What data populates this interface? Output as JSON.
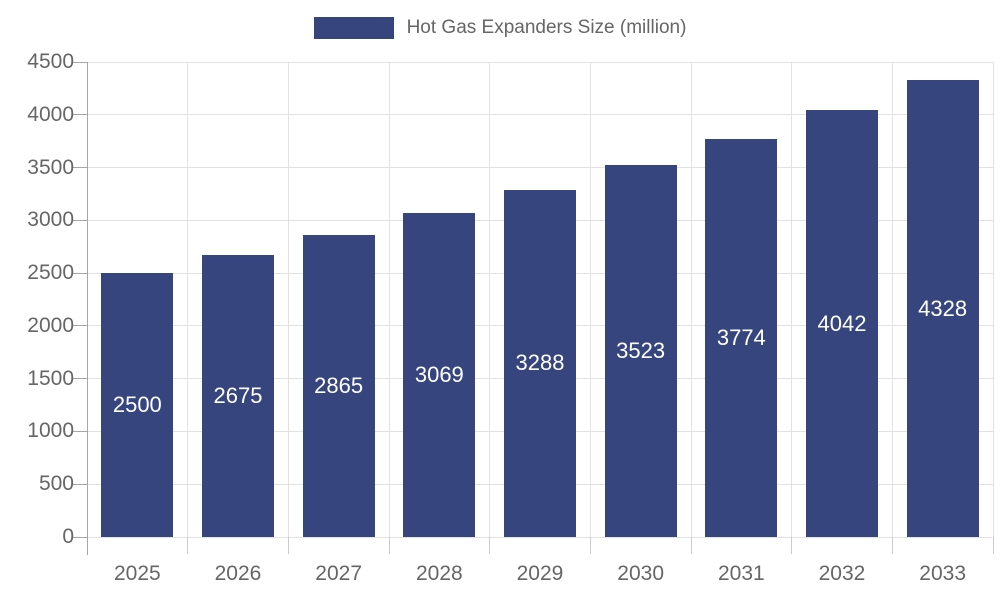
{
  "chart_data": {
    "type": "bar",
    "title": "Hot Gas Expanders Size (million)",
    "legend": {
      "position": "top",
      "label": "Hot Gas Expanders Size (million)"
    },
    "categories": [
      "2025",
      "2026",
      "2027",
      "2028",
      "2029",
      "2030",
      "2031",
      "2032",
      "2033"
    ],
    "values": [
      2500,
      2675,
      2865,
      3069,
      3288,
      3523,
      3774,
      4042,
      4328
    ],
    "xlabel": "",
    "ylabel": "",
    "ylim": [
      0,
      4500
    ],
    "ytick_step": 500,
    "ytick_labels": [
      "0",
      "500",
      "1000",
      "1500",
      "2000",
      "2500",
      "3000",
      "3500",
      "4000",
      "4500"
    ],
    "grid": true,
    "bar_value_labels_inside": true,
    "colors": {
      "bar": "#36457D",
      "bar_label": "#FFFFFF",
      "grid": "#E2E2E2",
      "axis": "#A6A6A6",
      "bottom_tick": "#CCCCCC",
      "tick_label": "#666666",
      "legend_text": "#666666",
      "background": "#FFFFFF"
    }
  }
}
